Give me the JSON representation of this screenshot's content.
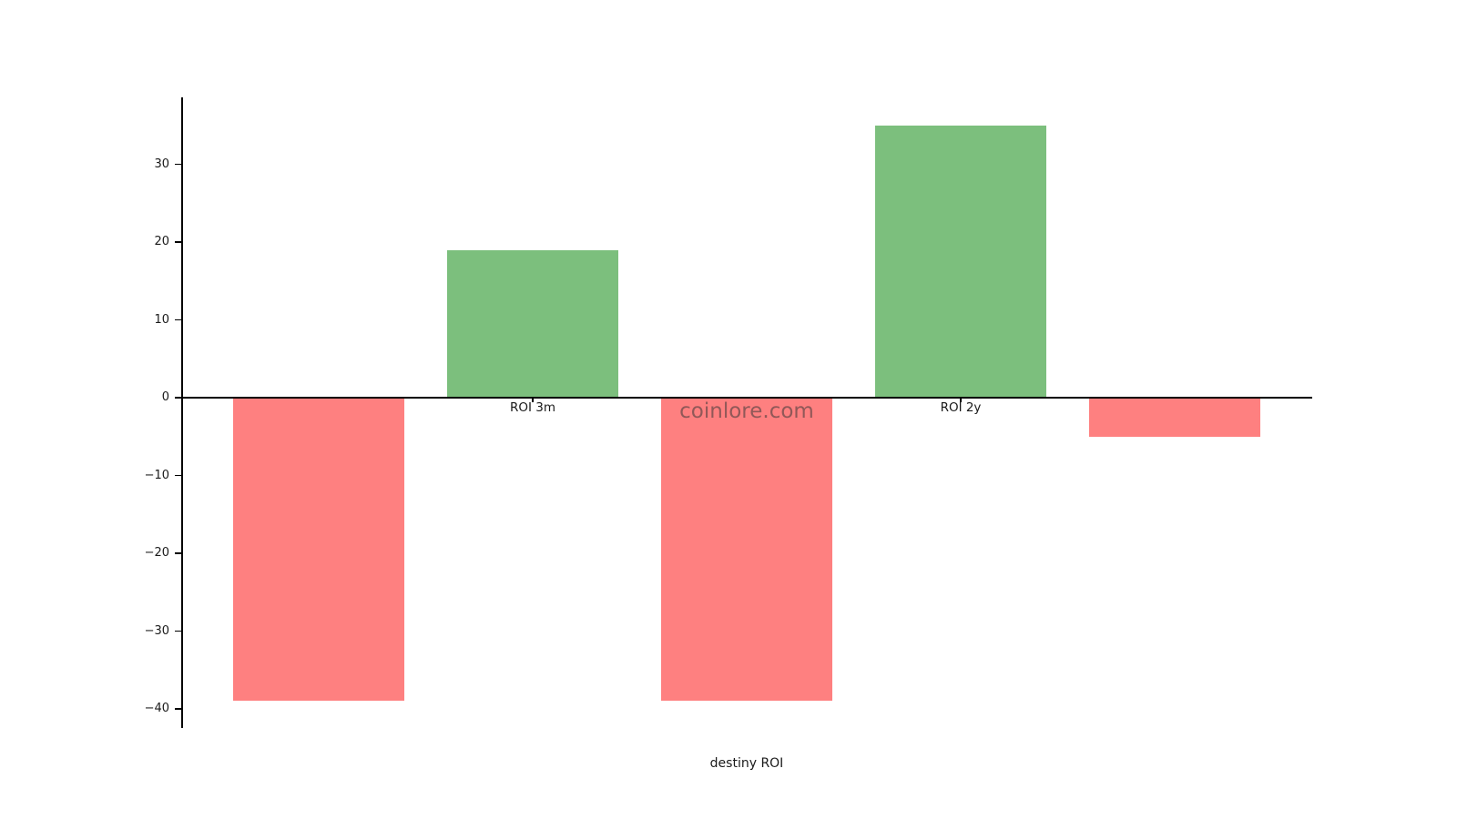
{
  "chart_data": {
    "type": "bar",
    "categories": [
      "",
      "ROI 3m",
      "",
      "ROI 2y",
      ""
    ],
    "values": [
      -39,
      19,
      -39,
      35,
      -5
    ],
    "positive_color": "#7CBF7D",
    "negative_color": "#FE8080",
    "bar_colors": [
      "#FE8080",
      "#7CBF7D",
      "#FE8080",
      "#7CBF7D",
      "#FE8080"
    ],
    "title": "",
    "xlabel": "destiny ROI",
    "ylabel": "",
    "y_ticks": [
      30,
      20,
      10,
      0,
      -10,
      -20,
      -30,
      -40
    ],
    "y_tick_labels": [
      "30",
      "20",
      "10",
      "0",
      "−10",
      "−20",
      "−30",
      "−40"
    ],
    "ylim": [
      -42.6,
      38.6
    ],
    "grid": false,
    "legend_position": "none",
    "watermark": "coinlore.com",
    "axis_color": "#000000",
    "text_color": "#1a1a1a"
  }
}
